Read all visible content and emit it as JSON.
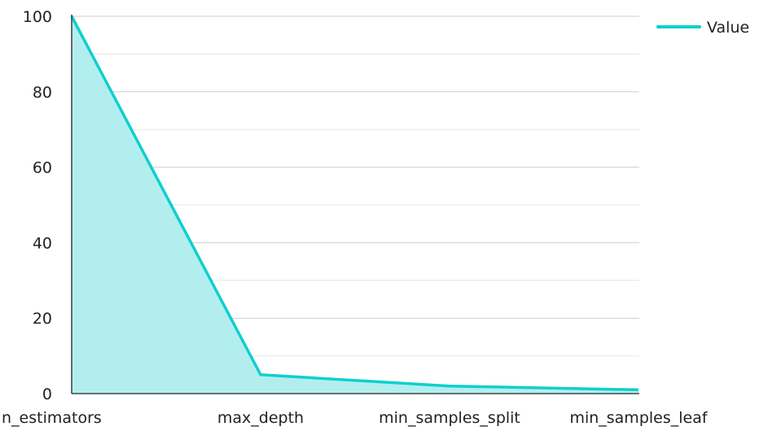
{
  "chart_data": {
    "type": "area",
    "categories": [
      "n_estimators",
      "max_depth",
      "min_samples_split",
      "min_samples_leaf"
    ],
    "series": [
      {
        "name": "Value",
        "values": [
          100,
          5,
          2,
          1
        ]
      }
    ],
    "title": "",
    "xlabel": "",
    "ylabel": "",
    "ylim": [
      0,
      100
    ],
    "yticks": [
      0,
      20,
      40,
      60,
      80,
      100
    ],
    "grid": true,
    "legend": "top-right",
    "colors": {
      "line": "#0fcfcf",
      "fill": "#b3eeee"
    }
  }
}
